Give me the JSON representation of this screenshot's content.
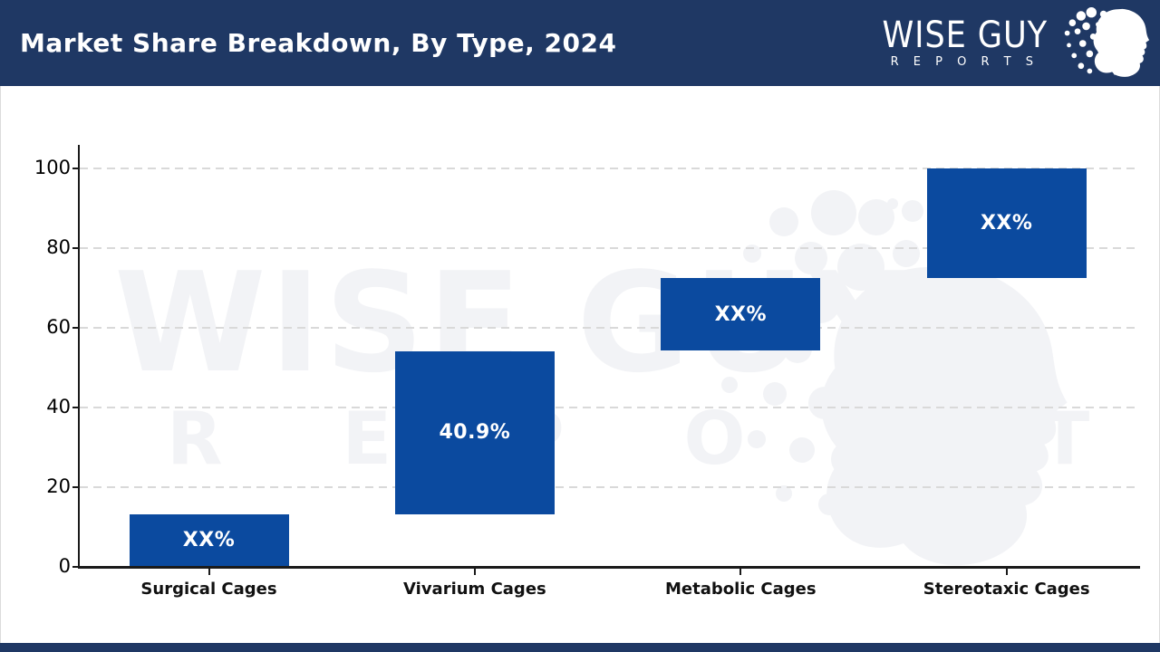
{
  "header": {
    "title": "Market Share Breakdown, By Type, 2024",
    "logo": {
      "line1": "WISE GUY",
      "line2": "R E P O R T S",
      "icon": "face-profile-dots-icon"
    }
  },
  "watermark": {
    "line1": "WISE GUY",
    "line2": "R E P O R T S",
    "icon": "face-profile-dots-watermark"
  },
  "colors": {
    "header_bg": "#1f3864",
    "footer_bg": "#1f3864",
    "bar": "#0b4a9f",
    "grid": "#d9d9d9",
    "axis": "#1a1a1a",
    "watermark": "#f2f3f6",
    "bar_label": "#ffffff",
    "title_text": "#ffffff"
  },
  "chart_data": {
    "type": "bar",
    "subtype": "floating-waterfall",
    "title": "Market Share Breakdown, By Type, 2024",
    "categories": [
      "Surgical Cages",
      "Vivarium Cages",
      "Metabolic Cages",
      "Stereotaxic Cages"
    ],
    "segments": [
      {
        "category": "Surgical Cages",
        "start": 0,
        "end": 13.2,
        "label": "XX%"
      },
      {
        "category": "Vivarium Cages",
        "start": 13.2,
        "end": 54.1,
        "label": "40.9%"
      },
      {
        "category": "Metabolic Cages",
        "start": 54.3,
        "end": 72.5,
        "label": "XX%"
      },
      {
        "category": "Stereotaxic Cages",
        "start": 72.5,
        "end": 100.0,
        "label": "XX%"
      }
    ],
    "known_values": {
      "Vivarium Cages": 40.9
    },
    "masked_value_placeholder": "XX%",
    "yticks": [
      0,
      20,
      40,
      60,
      80,
      100
    ],
    "ylim": [
      0,
      105
    ],
    "xlabel": "",
    "ylabel": "",
    "grid": "horizontal-dashed",
    "legend": "none"
  }
}
